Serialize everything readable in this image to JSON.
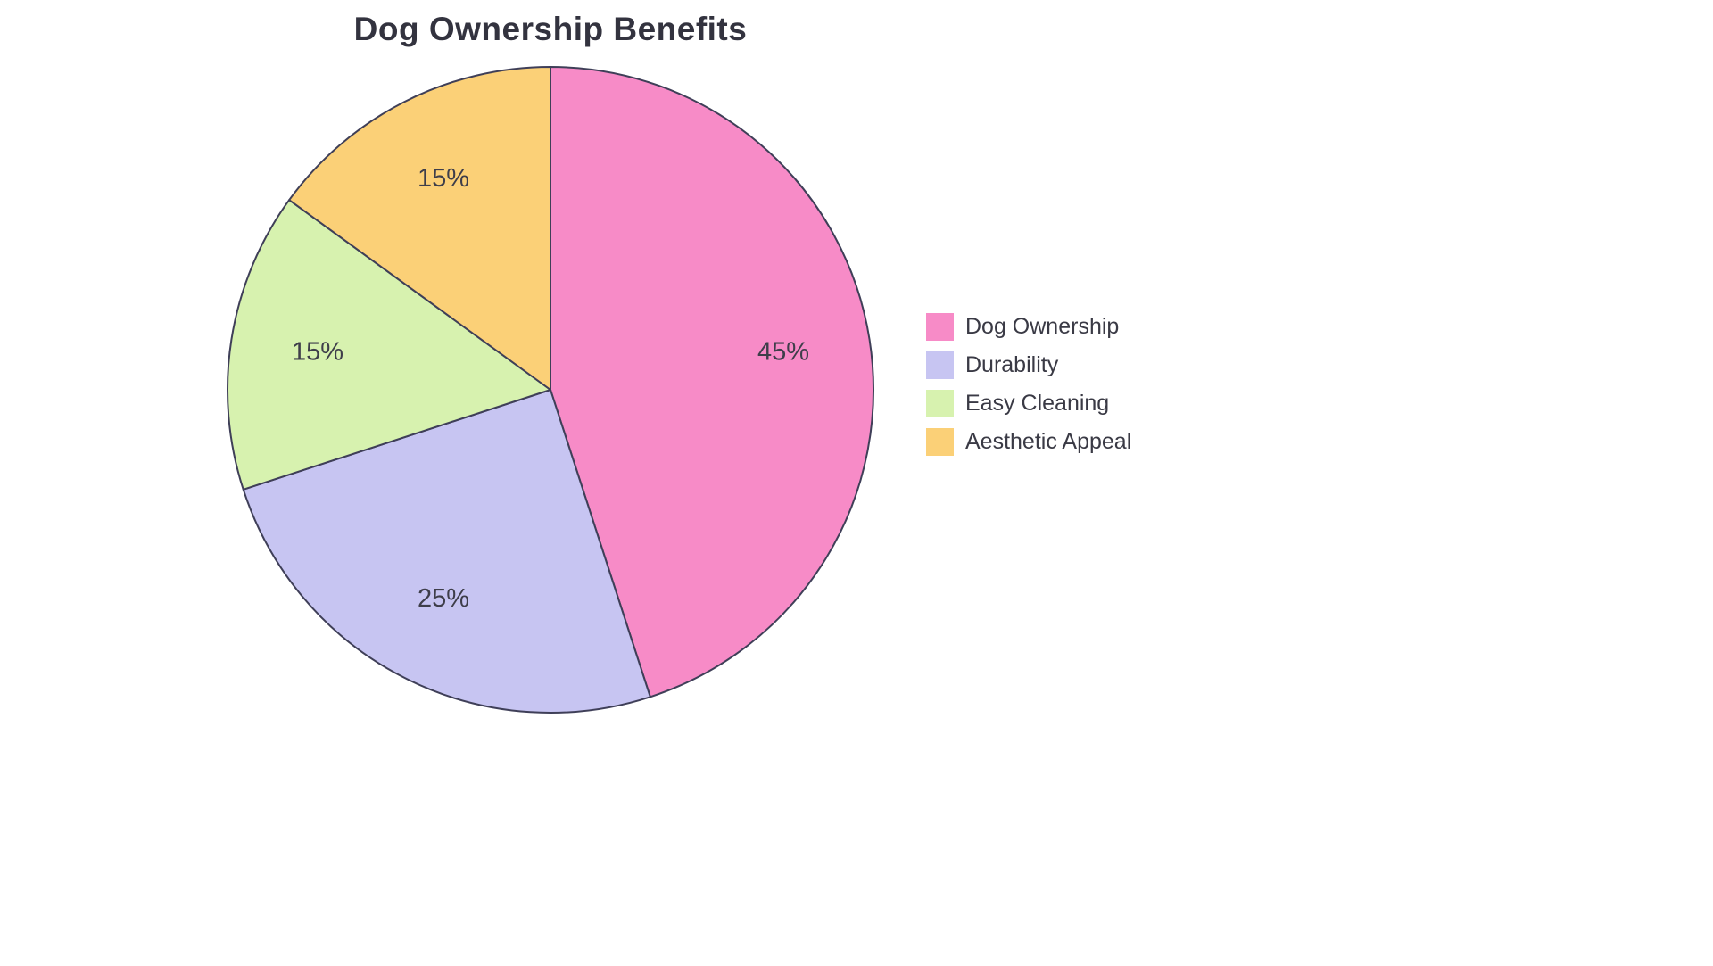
{
  "chart_data": {
    "type": "pie",
    "title": "Dog Ownership Benefits",
    "direction": "clockwise",
    "start_angle_deg": 0,
    "legend_position": "right",
    "slice_border_color": "#3f3f58",
    "label_color": "#3e3e4a",
    "background_color": "#ffffff",
    "series": [
      {
        "name": "Dog Ownership",
        "value": 45,
        "label": "45%",
        "color": "#f78bc7"
      },
      {
        "name": "Durability",
        "value": 25,
        "label": "25%",
        "color": "#c7c5f2"
      },
      {
        "name": "Easy Cleaning",
        "value": 15,
        "label": "15%",
        "color": "#d7f2af"
      },
      {
        "name": "Aesthetic Appeal",
        "value": 15,
        "label": "15%",
        "color": "#fbd077"
      }
    ]
  }
}
